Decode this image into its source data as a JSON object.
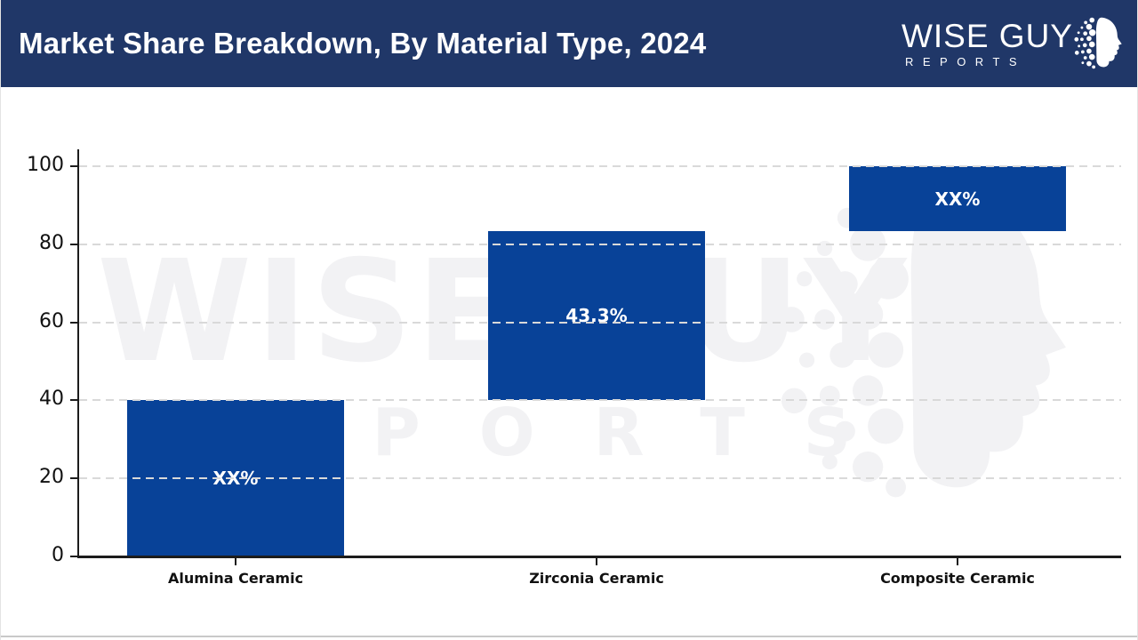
{
  "header": {
    "title": "Market Share Breakdown, By Material Type, 2024",
    "logo": {
      "wordmark": "WISE GUY",
      "subtitle": "REPORTS"
    }
  },
  "watermark": {
    "line1": "WISE GUY",
    "line2": "REPORTS"
  },
  "chart_data": {
    "type": "bar",
    "subtype": "waterfall",
    "title": "Market Share Breakdown, By Material Type, 2024",
    "categories": [
      "Alumina Ceramic",
      "Zirconia Ceramic",
      "Composite Ceramic"
    ],
    "bars": [
      {
        "category": "Alumina Ceramic",
        "base": 0,
        "top": 40,
        "value": 40,
        "label": "XX%"
      },
      {
        "category": "Zirconia Ceramic",
        "base": 40,
        "top": 83.3,
        "value": 43.3,
        "label": "43.3%"
      },
      {
        "category": "Composite Ceramic",
        "base": 83.3,
        "top": 100,
        "value": 16.7,
        "label": "XX%"
      }
    ],
    "yticks": [
      0,
      20,
      40,
      60,
      80,
      100
    ],
    "ylim": [
      0,
      110
    ],
    "xlabel": "",
    "ylabel": "",
    "grid": "horizontal-dashed",
    "legend": "none"
  },
  "colors": {
    "header_bg": "#203768",
    "bar": "#084298",
    "bar_label": "#ffffff",
    "grid": "#d9d9d9",
    "axis": "#1c1c1c",
    "watermark": "#f2f2f4",
    "page_border": "#c9c9c9"
  }
}
